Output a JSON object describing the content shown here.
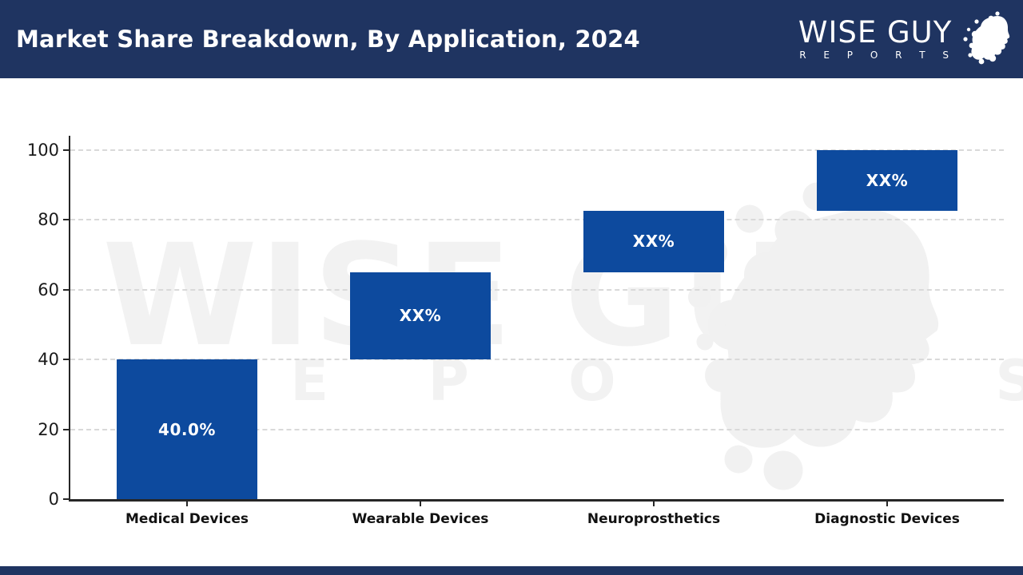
{
  "header": {
    "title": "Market Share Breakdown, By Application, 2024",
    "logo": {
      "line1": "WISE GUY",
      "line2": "R E P O R T S"
    }
  },
  "watermark": {
    "line1": "WISE GUY",
    "line2": "R E P O R T S"
  },
  "chart_data": {
    "type": "bar",
    "subtype": "waterfall",
    "title": "Market Share Breakdown, By Application, 2024",
    "categories": [
      "Medical Devices",
      "Wearable Devices",
      "Neuroprosthetics",
      "Diagnostic Devices"
    ],
    "bars": [
      {
        "category": "Medical Devices",
        "start": 0,
        "end": 40,
        "label": "40.0%"
      },
      {
        "category": "Wearable Devices",
        "start": 40,
        "end": 65,
        "label": "XX%"
      },
      {
        "category": "Neuroprosthetics",
        "start": 65,
        "end": 82.5,
        "label": "XX%"
      },
      {
        "category": "Diagnostic Devices",
        "start": 82.5,
        "end": 100,
        "label": "XX%"
      }
    ],
    "yticks": [
      0,
      20,
      40,
      60,
      80,
      100
    ],
    "ylim": [
      0,
      104
    ],
    "xlabel": "",
    "ylabel": "",
    "grid": "horizontal-dashed",
    "legend": "none"
  },
  "colors": {
    "header_bg": "#1f3461",
    "footer_bg": "#1f3461",
    "bar": "#0d4a9e",
    "grid": "#d9d9d9",
    "axis": "#262626",
    "bar_label": "#ffffff",
    "watermark": "#f2f2f2"
  }
}
